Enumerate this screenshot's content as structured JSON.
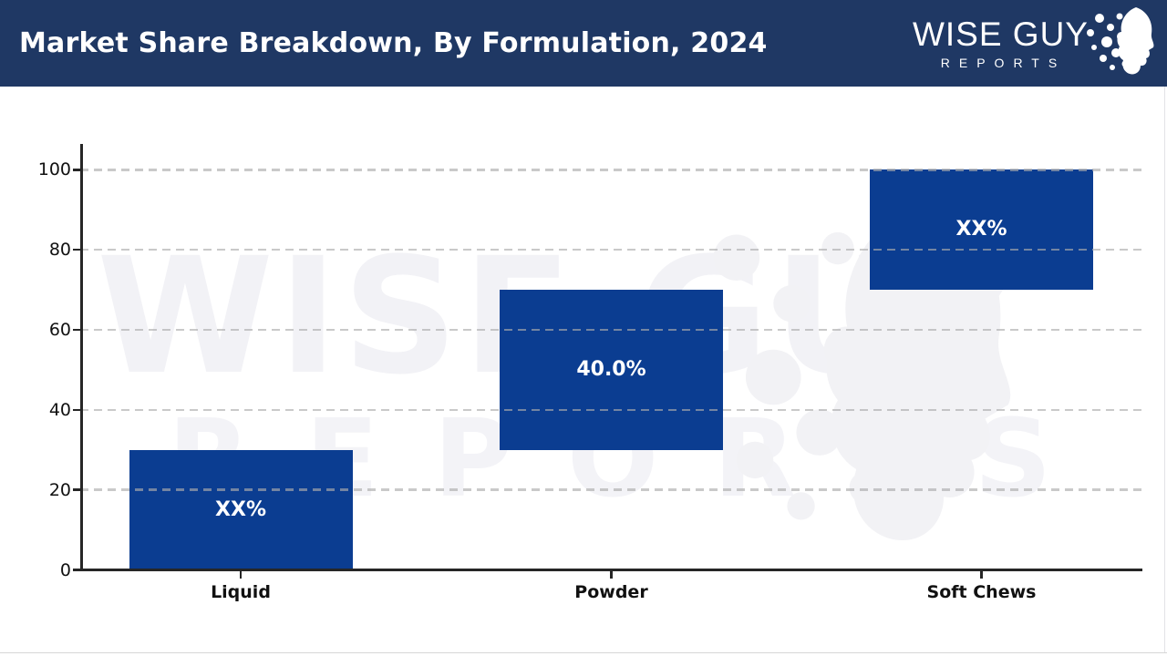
{
  "header": {
    "title": "Market Share Breakdown, By Formulation, 2024",
    "logo": {
      "wordmark": "WISE GUY",
      "tagline": "REPORTS"
    }
  },
  "watermark": {
    "wordmark": "WISE GUY",
    "tagline": "REPORTS"
  },
  "colors": {
    "header_bg": "#1f3864",
    "bar": "#0b3d91",
    "bar_label": "#ffffff",
    "axis": "#262626",
    "gridline": "#cccccc",
    "watermark": "#f2f2f6",
    "title_text": "#ffffff"
  },
  "chart_data": {
    "type": "bar",
    "subtype": "floating-range-bars",
    "title": "Market Share Breakdown, By Formulation, 2024",
    "categories": [
      "Liquid",
      "Powder",
      "Soft Chews"
    ],
    "series": [
      {
        "name": "Market share (%)",
        "ranges": [
          [
            0,
            30
          ],
          [
            30,
            70
          ],
          [
            70,
            100
          ]
        ],
        "bar_labels": [
          "XX%",
          "40.0%",
          "XX%"
        ]
      }
    ],
    "xlabel": "",
    "ylabel": "",
    "ylim": [
      0,
      100
    ],
    "yticks": [
      0,
      20,
      40,
      60,
      80,
      100
    ],
    "grid": "horizontal-dashed",
    "legend": false
  }
}
